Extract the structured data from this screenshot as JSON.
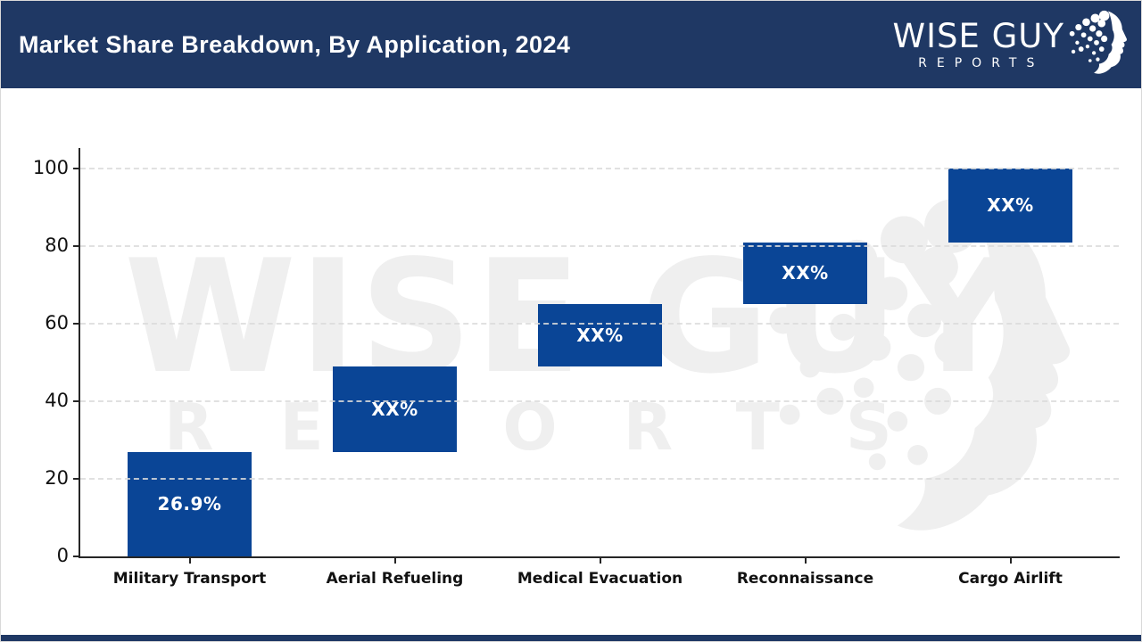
{
  "header": {
    "title": "Market Share Breakdown, By Application, 2024",
    "bg_color": "#1f3864",
    "logo": {
      "line1": "WISE GUY",
      "line2": "REPORTS",
      "face_icon": "dotted-face-profile"
    }
  },
  "watermark": {
    "line1": "WISE GUY",
    "line2": "REPORTS"
  },
  "chart_data": {
    "type": "bar",
    "subtype": "waterfall",
    "title": "Market Share Breakdown, By Application, 2024",
    "xlabel": "",
    "ylabel": "",
    "ylim": [
      0,
      106
    ],
    "y_ticks": [
      0,
      20,
      40,
      60,
      80,
      100
    ],
    "grid": "horizontal-dashed",
    "grid_color": "#dcdcdc",
    "bar_color": "#0a4596",
    "axis_color": "#262626",
    "categories": [
      "Military Transport",
      "Aerial Refueling",
      "Medical Evacuation",
      "Reconnaissance",
      "Cargo Airlift"
    ],
    "segments": [
      {
        "category": "Military Transport",
        "start": 0,
        "end": 26.9,
        "label": "26.9%"
      },
      {
        "category": "Aerial Refueling",
        "start": 26.9,
        "end": 49,
        "label": "XX%"
      },
      {
        "category": "Medical Evacuation",
        "start": 49,
        "end": 65,
        "label": "XX%"
      },
      {
        "category": "Reconnaissance",
        "start": 65,
        "end": 81,
        "label": "XX%"
      },
      {
        "category": "Cargo Airlift",
        "start": 81,
        "end": 100,
        "label": "XX%"
      }
    ]
  }
}
